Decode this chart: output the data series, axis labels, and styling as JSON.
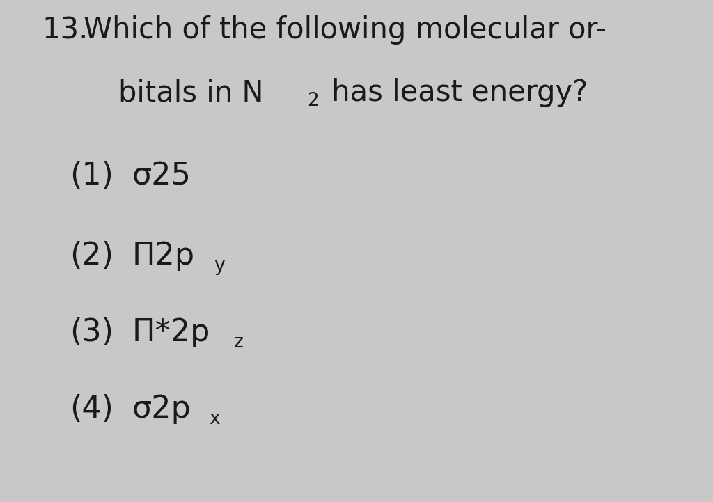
{
  "background_color": "#c8c8c8",
  "text_color": "#1a1a1a",
  "question_number": "13.",
  "question_line1": "Which of the following molecular or-",
  "question_line2_pre": "bitals in N",
  "question_line2_sub": "2",
  "question_line2_post": " has least energy?",
  "options": [
    {
      "num": "(1)",
      "main": "σ25",
      "sub": ""
    },
    {
      "num": "(2)",
      "main": "Π2p",
      "sub": "y"
    },
    {
      "num": "(3)",
      "main": "Π*2p",
      "sub": "z"
    },
    {
      "num": "(4)",
      "main": "σ2p",
      "sub": "x"
    }
  ],
  "font_size_question": 30,
  "font_size_options": 32,
  "font_size_sub": 19,
  "figsize": [
    10.24,
    7.21
  ],
  "dpi": 100
}
